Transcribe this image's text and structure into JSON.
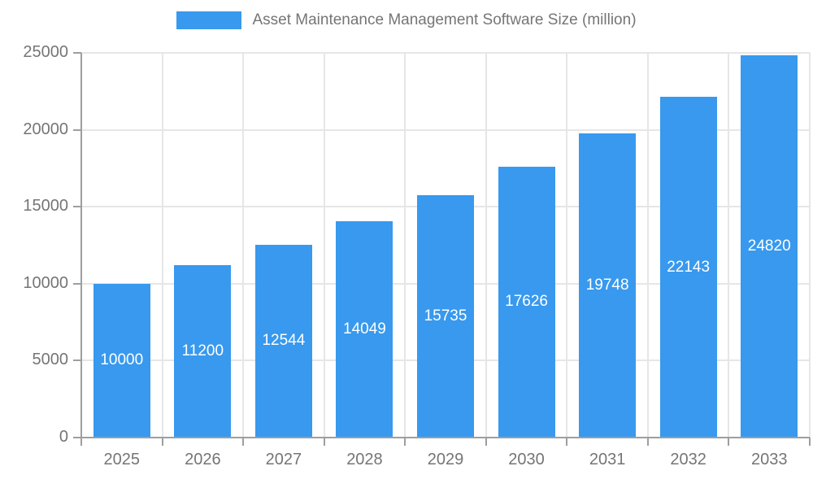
{
  "chart_data": {
    "type": "bar",
    "title": "",
    "legend": {
      "label": "Asset Maintenance Management Software Size (million)",
      "position": "top"
    },
    "categories": [
      "2025",
      "2026",
      "2027",
      "2028",
      "2029",
      "2030",
      "2031",
      "2032",
      "2033"
    ],
    "values": [
      10000,
      11200,
      12544,
      14049,
      15735,
      17626,
      19748,
      22143,
      24820
    ],
    "value_labels_shown": true,
    "xlabel": "",
    "ylabel": "",
    "ylim": [
      0,
      25000
    ],
    "yticks": [
      0,
      5000,
      10000,
      15000,
      20000,
      25000
    ],
    "grid": "on",
    "colors": {
      "bar": "#3899ee",
      "bar_value_label": "#ffffff",
      "axis": "#9e9e9e",
      "gridline": "#e6e6e6",
      "tick_label": "#757575",
      "legend_text": "#757575",
      "background": "#ffffff"
    }
  }
}
